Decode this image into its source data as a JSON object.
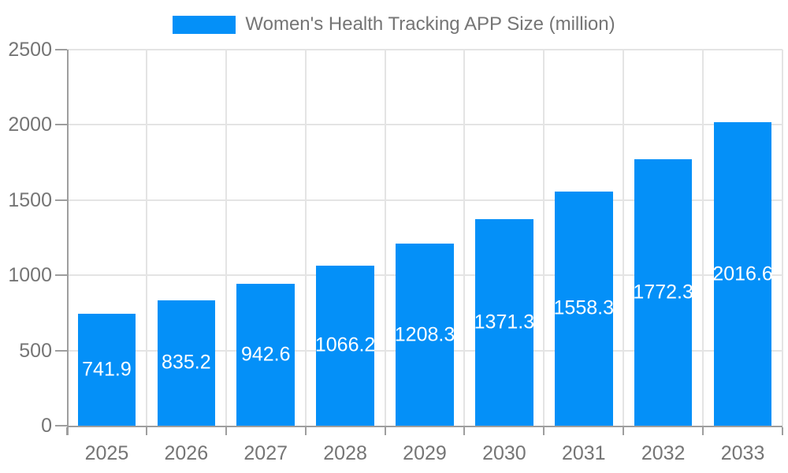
{
  "legend": {
    "label": "Women's Health Tracking APP Size (million)"
  },
  "chart_data": {
    "type": "bar",
    "title": "",
    "xlabel": "",
    "ylabel": "",
    "categories": [
      "2025",
      "2026",
      "2027",
      "2028",
      "2029",
      "2030",
      "2031",
      "2032",
      "2033"
    ],
    "values": [
      741.9,
      835.2,
      942.6,
      1066.2,
      1208.3,
      1371.3,
      1558.3,
      1772.3,
      2016.6
    ],
    "series_name": "Women's Health Tracking APP Size (million)",
    "ylim": [
      0,
      2500
    ],
    "yticks": [
      0,
      500,
      1000,
      1500,
      2000,
      2500
    ],
    "grid": true,
    "legend_position": "top",
    "value_label_position": "inside-center"
  },
  "colors": {
    "bar": "#0490f8",
    "grid": "#e4e4e4",
    "axis": "#9e9e9e",
    "tick_text": "#757575",
    "value_label": "#ffffff",
    "background": "#ffffff"
  }
}
